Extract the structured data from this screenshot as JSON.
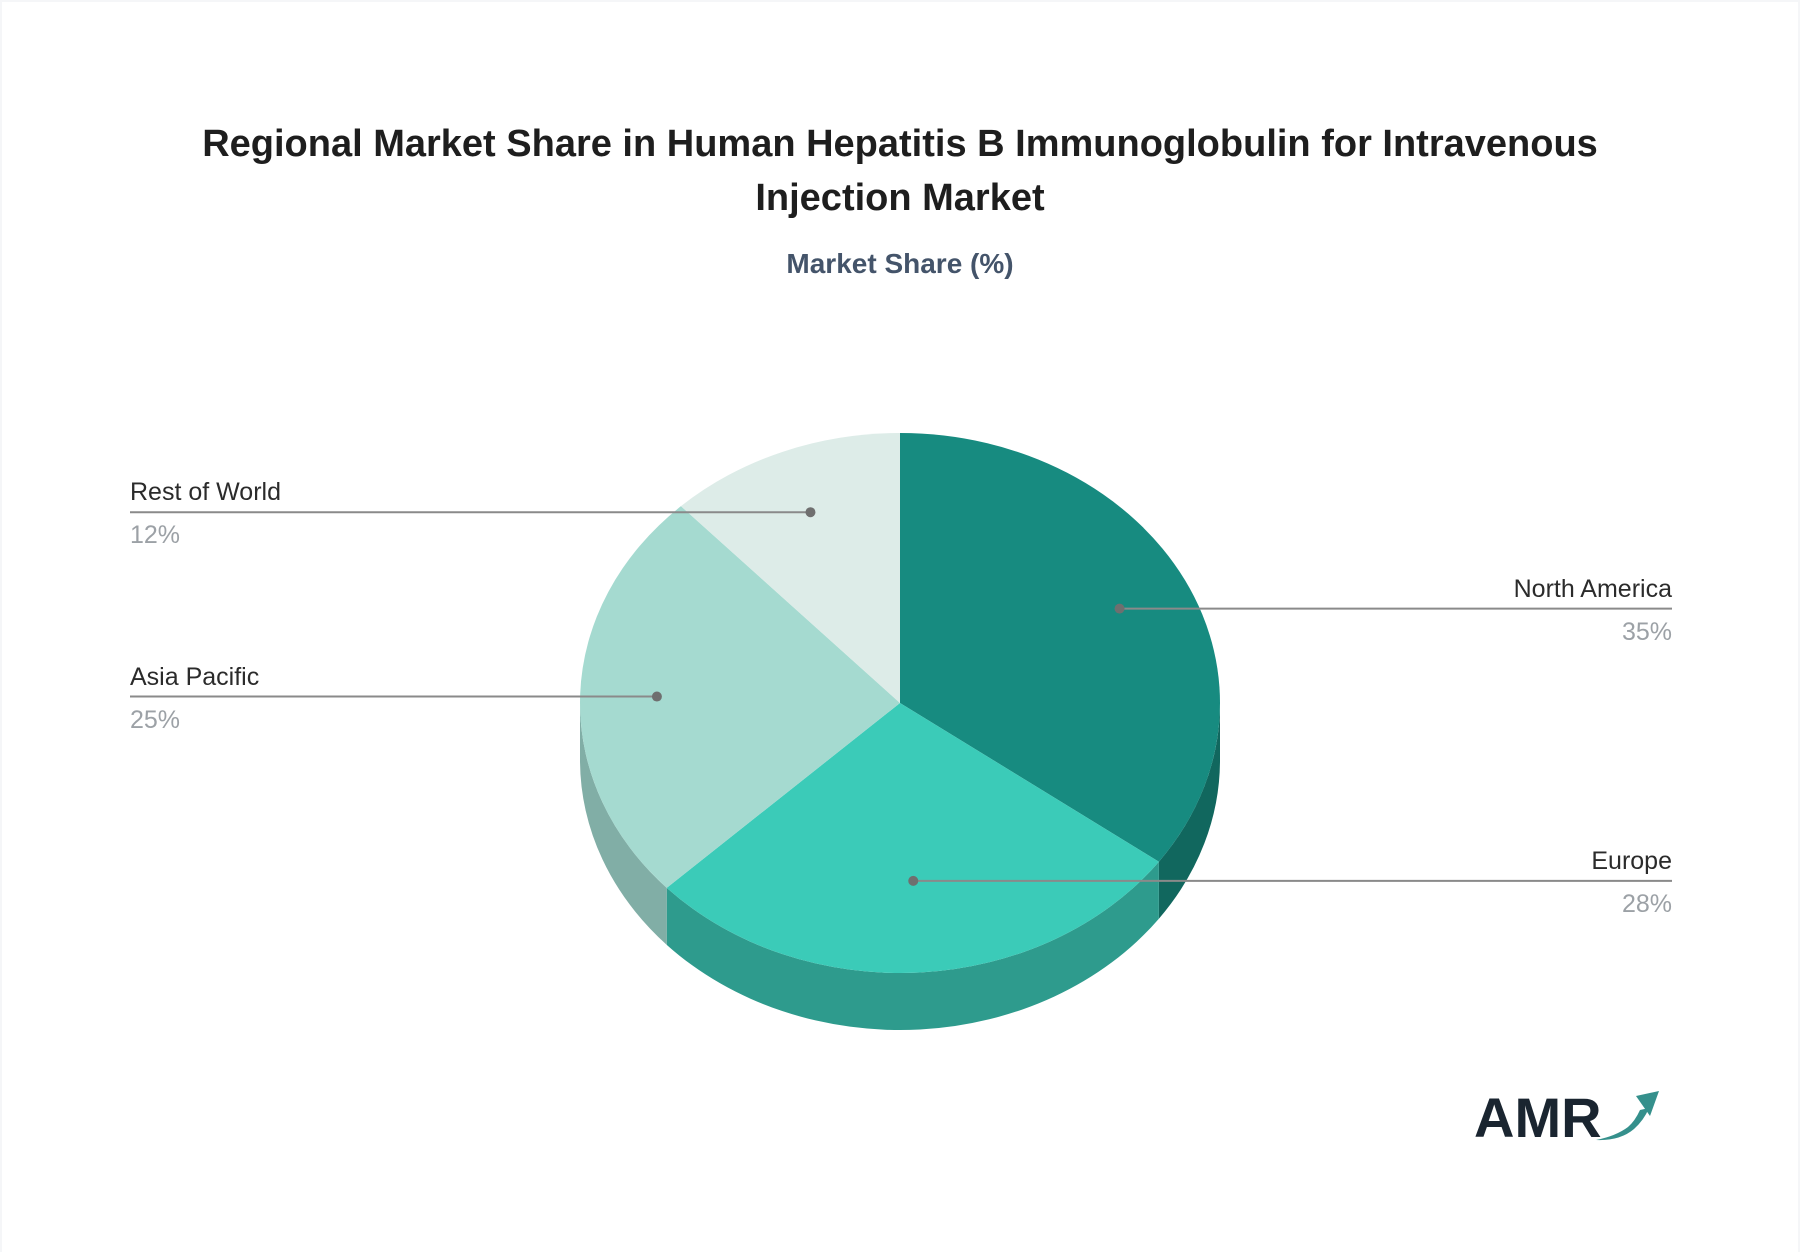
{
  "header": {
    "title": "Regional Market Share in Human Hepatitis B Immunoglobulin for Intravenous Injection Market",
    "subtitle": "Market Share (%)"
  },
  "logo": {
    "text": "AMR"
  },
  "chart_data": {
    "type": "pie",
    "style": "3d",
    "title": "Regional Market Share in Human Hepatitis B Immunoglobulin for Intravenous Injection Market",
    "subtitle": "Market Share (%)",
    "unit": "%",
    "legend": "none",
    "labels_layout": "leader-lines",
    "start_angle_deg": 0,
    "direction": "clockwise",
    "categories": [
      "North America",
      "Europe",
      "Asia Pacific",
      "Rest of World"
    ],
    "values": [
      35,
      28,
      25,
      12
    ],
    "slices": [
      {
        "label": "North America",
        "value": 35,
        "pct_text": "35%",
        "color": "#178b80",
        "side_color": "#11675e",
        "label_side": "right"
      },
      {
        "label": "Europe",
        "value": 28,
        "pct_text": "28%",
        "color": "#3bcbb8",
        "side_color": "#2e9b8d",
        "label_side": "right"
      },
      {
        "label": "Asia Pacific",
        "value": 25,
        "pct_text": "25%",
        "color": "#a5dad0",
        "side_color": "#81aea6",
        "label_side": "left"
      },
      {
        "label": "Rest of World",
        "value": 12,
        "pct_text": "12%",
        "color": "#ddece8",
        "side_color": "#b7cfca",
        "label_side": "left"
      }
    ],
    "leader_line_color": "#8a8a8a",
    "dot_color": "#6f6f6f",
    "label_color": "#2b2b2b",
    "pct_color": "#9ca1a6"
  }
}
